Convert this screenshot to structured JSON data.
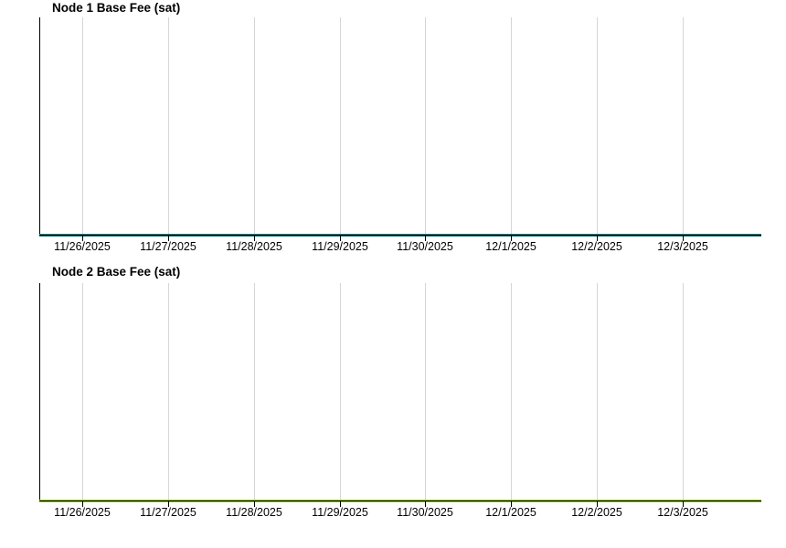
{
  "page": {
    "background": "#ffffff"
  },
  "style": {
    "axis_color": "#000000",
    "gridline_color": "#d6d6d6",
    "tick_color": "#000000",
    "title_color": "#000000",
    "label_color": "#000000"
  },
  "chart_data": [
    {
      "type": "line",
      "title": "Node 1 Base Fee (sat)",
      "x": [
        "11/26/2025",
        "11/27/2025",
        "11/28/2025",
        "11/29/2025",
        "11/30/2025",
        "12/1/2025",
        "12/2/2025",
        "12/3/2025"
      ],
      "series": [
        {
          "name": "Node 1 Base Fee",
          "color": "#008080",
          "values": [
            0,
            0,
            0,
            0,
            0,
            0,
            0,
            0
          ]
        }
      ],
      "xlabel": "",
      "ylabel": "",
      "y_axis_tick_labels": [],
      "grid": "vertical-only",
      "legend": "none"
    },
    {
      "type": "line",
      "title": "Node 2 Base Fee (sat)",
      "x": [
        "11/26/2025",
        "11/27/2025",
        "11/28/2025",
        "11/29/2025",
        "11/30/2025",
        "12/1/2025",
        "12/2/2025",
        "12/3/2025"
      ],
      "series": [
        {
          "name": "Node 2 Base Fee",
          "color": "#9ACD32",
          "values": [
            0,
            0,
            0,
            0,
            0,
            0,
            0,
            0
          ]
        }
      ],
      "xlabel": "",
      "ylabel": "",
      "y_axis_tick_labels": [],
      "grid": "vertical-only",
      "legend": "none"
    }
  ]
}
